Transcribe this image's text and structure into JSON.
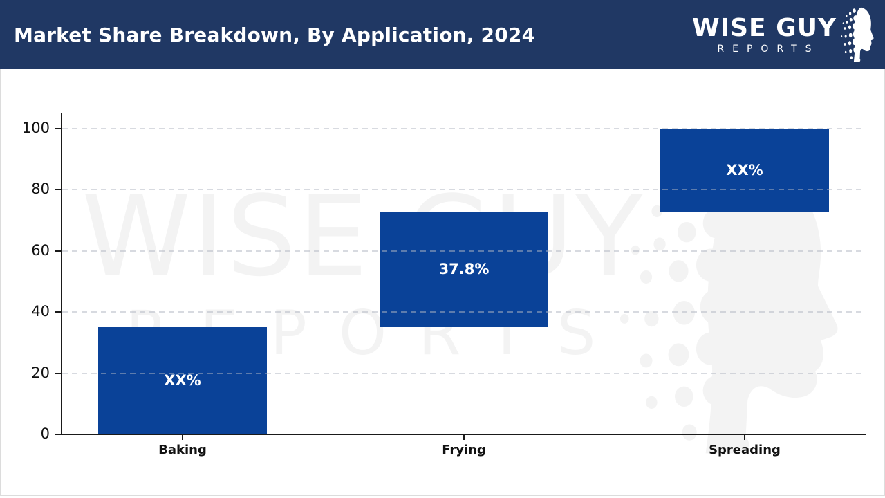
{
  "header": {
    "title": "Market Share Breakdown, By Application, 2024",
    "logo": {
      "line1": "WISE GUY",
      "line2": "REPORTS"
    }
  },
  "watermark": {
    "line1": "WISE GUY",
    "line2": "REPORTS"
  },
  "chart_data": {
    "type": "bar",
    "subtype": "floating-waterfall",
    "title": "Market Share Breakdown, By Application, 2024",
    "categories": [
      "Baking",
      "Frying",
      "Spreading"
    ],
    "segments": [
      {
        "category": "Baking",
        "start": 0,
        "end": 35.1,
        "label": "XX%"
      },
      {
        "category": "Frying",
        "start": 35.1,
        "end": 72.9,
        "label": "37.8%"
      },
      {
        "category": "Spreading",
        "start": 72.9,
        "end": 100,
        "label": "XX%"
      }
    ],
    "ylim": [
      0,
      100
    ],
    "yticks": [
      0,
      20,
      40,
      60,
      80,
      100
    ],
    "xlabel": "",
    "ylabel": "",
    "grid": "horizontal dashed, drawn over bars",
    "legend": "none"
  },
  "colors": {
    "header_bg": "#203864",
    "bar_blue": "#0a4298",
    "bar_label": "#ffffff",
    "axis": "#1a1a1a",
    "grid": "#dcdcdc",
    "watermark": "#f3f3f3",
    "card_border": "#dcdcdc",
    "title_text": "#ffffff"
  }
}
